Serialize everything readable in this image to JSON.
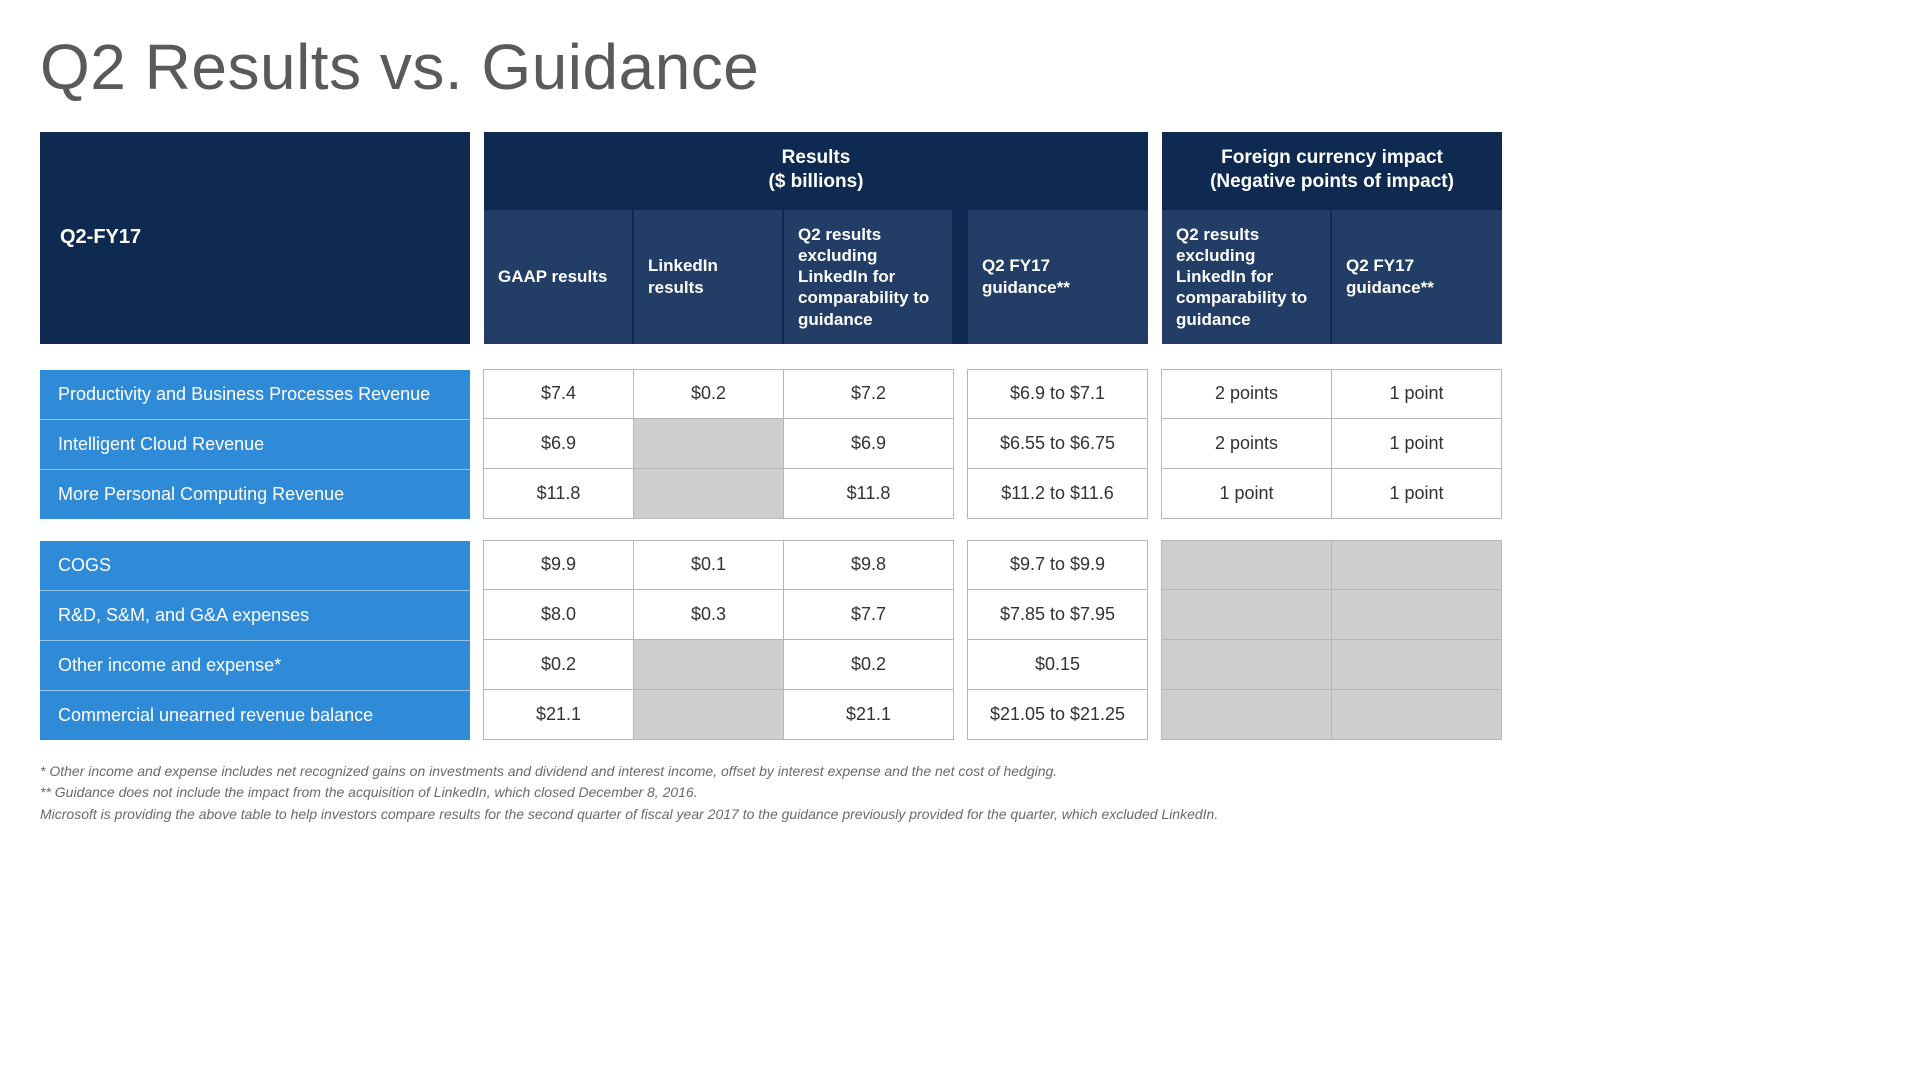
{
  "title": "Q2 Results vs. Guidance",
  "colors": {
    "header_dark": "#0f2a50",
    "header_mid": "#223d66",
    "row_label": "#2f8ad8",
    "cell_border": "#b7b7b7",
    "blank_cell": "#cfcfcf",
    "title_color": "#5a5a5a",
    "footnote_color": "#6a6a6a"
  },
  "typography": {
    "title_fontsize": 64,
    "title_weight": 300,
    "header_fontsize": 19,
    "subheader_fontsize": 17,
    "row_label_fontsize": 18,
    "cell_fontsize": 18,
    "footnote_fontsize": 14
  },
  "header": {
    "left": "Q2-FY17",
    "group_results": "Results\n($ billions)",
    "group_fx": "Foreign currency impact\n(Negative points of impact)",
    "sub": {
      "gaap": "GAAP results",
      "linkedin": "LinkedIn results",
      "excl": "Q2 results excluding LinkedIn for comparability to guidance",
      "guidance": "Q2 FY17 guidance**",
      "fx_excl": "Q2 results excluding LinkedIn for comparability to guidance",
      "fx_guidance": "Q2 FY17 guidance**"
    }
  },
  "rows_group1": [
    {
      "label": "Productivity and Business Processes Revenue",
      "gaap": "$7.4",
      "linkedin": "$0.2",
      "excl": "$7.2",
      "guidance": "$6.9 to $7.1",
      "fx_excl": "2 points",
      "fx_guidance": "1 point"
    },
    {
      "label": "Intelligent Cloud Revenue",
      "gaap": "$6.9",
      "linkedin": "",
      "excl": "$6.9",
      "guidance": "$6.55 to $6.75",
      "fx_excl": "2 points",
      "fx_guidance": "1 point"
    },
    {
      "label": "More Personal Computing Revenue",
      "gaap": "$11.8",
      "linkedin": "",
      "excl": "$11.8",
      "guidance": "$11.2 to $11.6",
      "fx_excl": "1 point",
      "fx_guidance": "1 point"
    }
  ],
  "rows_group2": [
    {
      "label": "COGS",
      "gaap": "$9.9",
      "linkedin": "$0.1",
      "excl": "$9.8",
      "guidance": "$9.7 to $9.9",
      "fx_excl": "",
      "fx_guidance": ""
    },
    {
      "label": "R&D, S&M, and G&A expenses",
      "gaap": "$8.0",
      "linkedin": "$0.3",
      "excl": "$7.7",
      "guidance": "$7.85 to $7.95",
      "fx_excl": "",
      "fx_guidance": ""
    },
    {
      "label": "Other income and expense*",
      "gaap": "$0.2",
      "linkedin": "",
      "excl": "$0.2",
      "guidance": "$0.15",
      "fx_excl": "",
      "fx_guidance": ""
    },
    {
      "label": "Commercial unearned revenue balance",
      "gaap": "$21.1",
      "linkedin": "",
      "excl": "$21.1",
      "guidance": "$21.05 to $21.25",
      "fx_excl": "",
      "fx_guidance": ""
    }
  ],
  "footnotes": {
    "f1": "* Other income and expense includes net recognized gains on investments and dividend and interest income, offset by interest expense and the net cost of hedging.",
    "f2": "** Guidance does not include the impact from the acquisition of LinkedIn, which closed December 8, 2016.",
    "f3": "Microsoft is providing the above table to help investors compare results for the second quarter of fiscal year 2017 to the guidance previously provided for the quarter, which excluded LinkedIn."
  }
}
